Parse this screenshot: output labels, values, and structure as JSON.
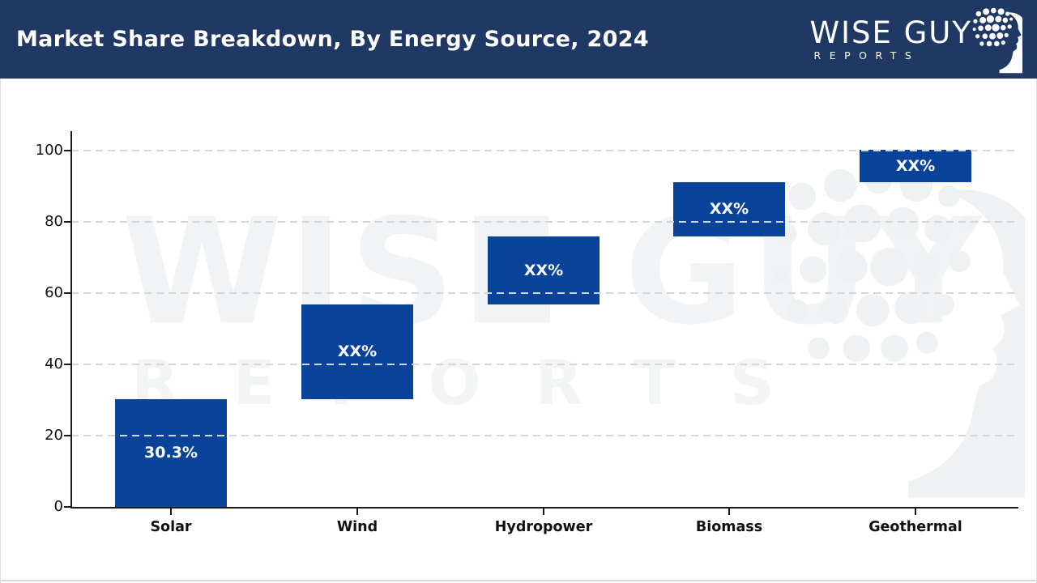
{
  "header": {
    "title": "Market Share Breakdown, By Energy Source, 2024",
    "bg_color": "#1f3864",
    "logo": {
      "line1": "WISE GUY",
      "line2": "REPORTS"
    }
  },
  "watermark": {
    "line1": "WISE GUY",
    "line2": "REPORTS"
  },
  "chart_data": {
    "type": "bar",
    "subtype": "waterfall",
    "title": "Market Share Breakdown, By Energy Source, 2024",
    "categories": [
      "Solar",
      "Wind",
      "Hydropower",
      "Biomass",
      "Geothermal"
    ],
    "segments": [
      {
        "category": "Solar",
        "label": "30.3%",
        "start": 0,
        "end": 30.3,
        "value": 30.3
      },
      {
        "category": "Wind",
        "label": "XX%",
        "start": 30.3,
        "end": 56.8,
        "value": 26.5
      },
      {
        "category": "Hydropower",
        "label": "XX%",
        "start": 56.8,
        "end": 75.9,
        "value": 19.1
      },
      {
        "category": "Biomass",
        "label": "XX%",
        "start": 75.9,
        "end": 91.2,
        "value": 15.3
      },
      {
        "category": "Geothermal",
        "label": "XX%",
        "start": 91.2,
        "end": 100.2,
        "value": 9.0
      }
    ],
    "yticks": [
      0,
      20,
      40,
      60,
      80,
      100
    ],
    "ylim": [
      0,
      105
    ],
    "xlabel": "",
    "ylabel": "",
    "bar_color": "#0a439a",
    "grid": "horizontal dashed",
    "legend": "none"
  }
}
